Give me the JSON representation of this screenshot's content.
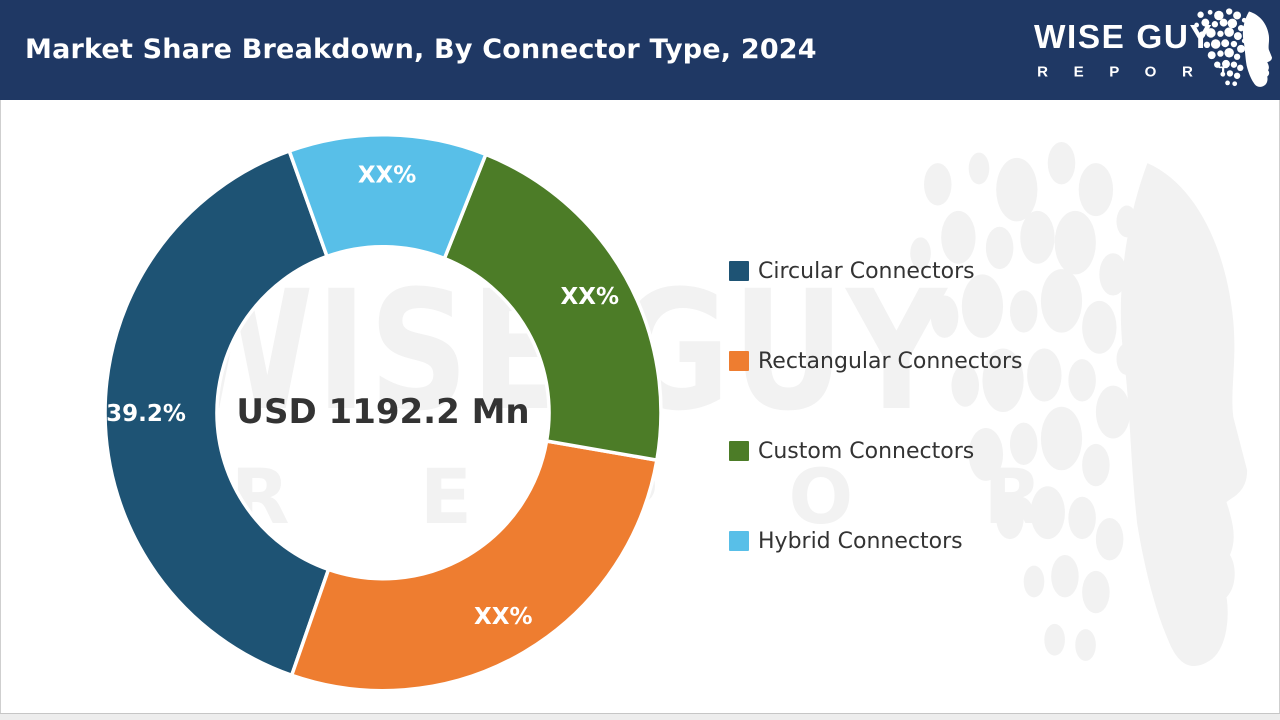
{
  "header": {
    "title": "Market Share Breakdown, By Connector Type, 2024",
    "logo": {
      "line1": "WISE GUY",
      "line2": "R E P O R T S"
    }
  },
  "watermark": {
    "line1": "WISE GUY",
    "line2": "R E P O R T S"
  },
  "chart_data": {
    "type": "pie",
    "subtype": "donut",
    "title": "Market Share Breakdown, By Connector Type, 2024",
    "center_label": "USD 1192.2 Mn",
    "legend_position": "right",
    "start_angle_deg": 109.7,
    "direction": "ccw",
    "outer_radius_px": 278,
    "inner_radius_px": 166,
    "label_radius_px": 237,
    "slices": [
      {
        "label": "Circular Connectors",
        "value": 39.2,
        "display": "39.2%",
        "color": "#1E5374"
      },
      {
        "label": "Rectangular Connectors",
        "value": 27.6,
        "display": "XX%",
        "color": "#EE7D30"
      },
      {
        "label": "Custom Connectors",
        "value": 21.7,
        "display": "XX%",
        "color": "#4C7C27"
      },
      {
        "label": "Hybrid Connectors",
        "value": 11.5,
        "display": "XX%",
        "color": "#58BFE8"
      }
    ]
  },
  "colors": {
    "header_bg": "#1F3864",
    "watermark": "#f2f2f2",
    "text": "#333333",
    "slice_border": "#ffffff"
  }
}
